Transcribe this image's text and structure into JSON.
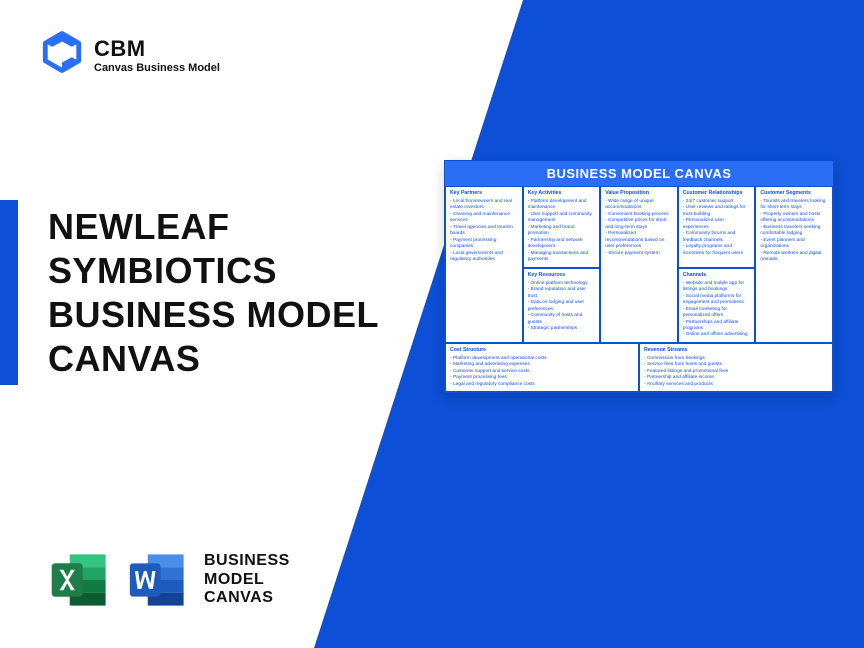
{
  "logo": {
    "abbr": "CBM",
    "full": "Canvas Business Model"
  },
  "title_lines": [
    "NEWLEAF",
    "SYMBIOTICS",
    "BUSINESS MODEL",
    "CANVAS"
  ],
  "bottom_label_lines": [
    "BUSINESS",
    "MODEL",
    "CANVAS"
  ],
  "canvas": {
    "title": "BUSINESS MODEL CANVAS",
    "blocks": {
      "key_partners": {
        "heading": "Key Partners",
        "items": [
          "Local homeowners and real estate investors",
          "Cleaning and maintenance services",
          "Travel agencies and tourism boards",
          "Payment processing companies",
          "Local governments and regulatory authorities"
        ]
      },
      "key_activities": {
        "heading": "Key Activities",
        "items": [
          "Platform development and maintenance",
          "User support and community management",
          "Marketing and brand promotion",
          "Partnership and network development",
          "Managing transactions and payments"
        ]
      },
      "value_proposition": {
        "heading": "Value Proposition",
        "items": [
          "Wide range of unique accommodations",
          "Convenient booking process",
          "Competitive prices for short and long-term stays",
          "Personalized recommendations based on user preferences",
          "Secure payment system"
        ]
      },
      "customer_relationships": {
        "heading": "Customer Relationships",
        "items": [
          "24/7 customer support",
          "User reviews and ratings for trust-building",
          "Personalized user experiences",
          "Community forums and feedback channels",
          "Loyalty programs and incentives for frequent users"
        ]
      },
      "customer_segments": {
        "heading": "Customer Segments",
        "items": [
          "Tourists and travelers looking for short-term stays",
          "Property owners and hosts offering accommodations",
          "Business travelers seeking comfortable lodging",
          "Event planners and organizations",
          "Remote workers and digital nomads"
        ]
      },
      "key_resources": {
        "heading": "Key Resources",
        "items": [
          "Online platform technology",
          "Brand reputation and user trust",
          "Data on lodging and user preferences",
          "Community of hosts and guests",
          "Strategic partnerships"
        ]
      },
      "channels": {
        "heading": "Channels",
        "items": [
          "Website and mobile app for listings and bookings",
          "Social media platforms for engagement and promotions",
          "Email marketing for personalized offers",
          "Partnerships and affiliate programs",
          "Online and offline advertising"
        ]
      },
      "cost_structure": {
        "heading": "Cost Structure",
        "items": [
          "Platform development and operational costs",
          "Marketing and advertising expenses",
          "Customer support and service costs",
          "Payment processing fees",
          "Legal and regulatory compliance costs"
        ]
      },
      "revenue_streams": {
        "heading": "Revenue Streams",
        "items": [
          "Commission from bookings",
          "Service fees from hosts and guests",
          "Featured listings and promotional fees",
          "Partnership and affiliate income",
          "Ancillary services and products"
        ]
      }
    }
  },
  "colors": {
    "brand": "#0d4fd6",
    "header": "#2a6ef5",
    "excel": "#1e7e4a",
    "excel_dark": "#0e5c32",
    "word": "#2461c9",
    "word_dark": "#144393"
  }
}
